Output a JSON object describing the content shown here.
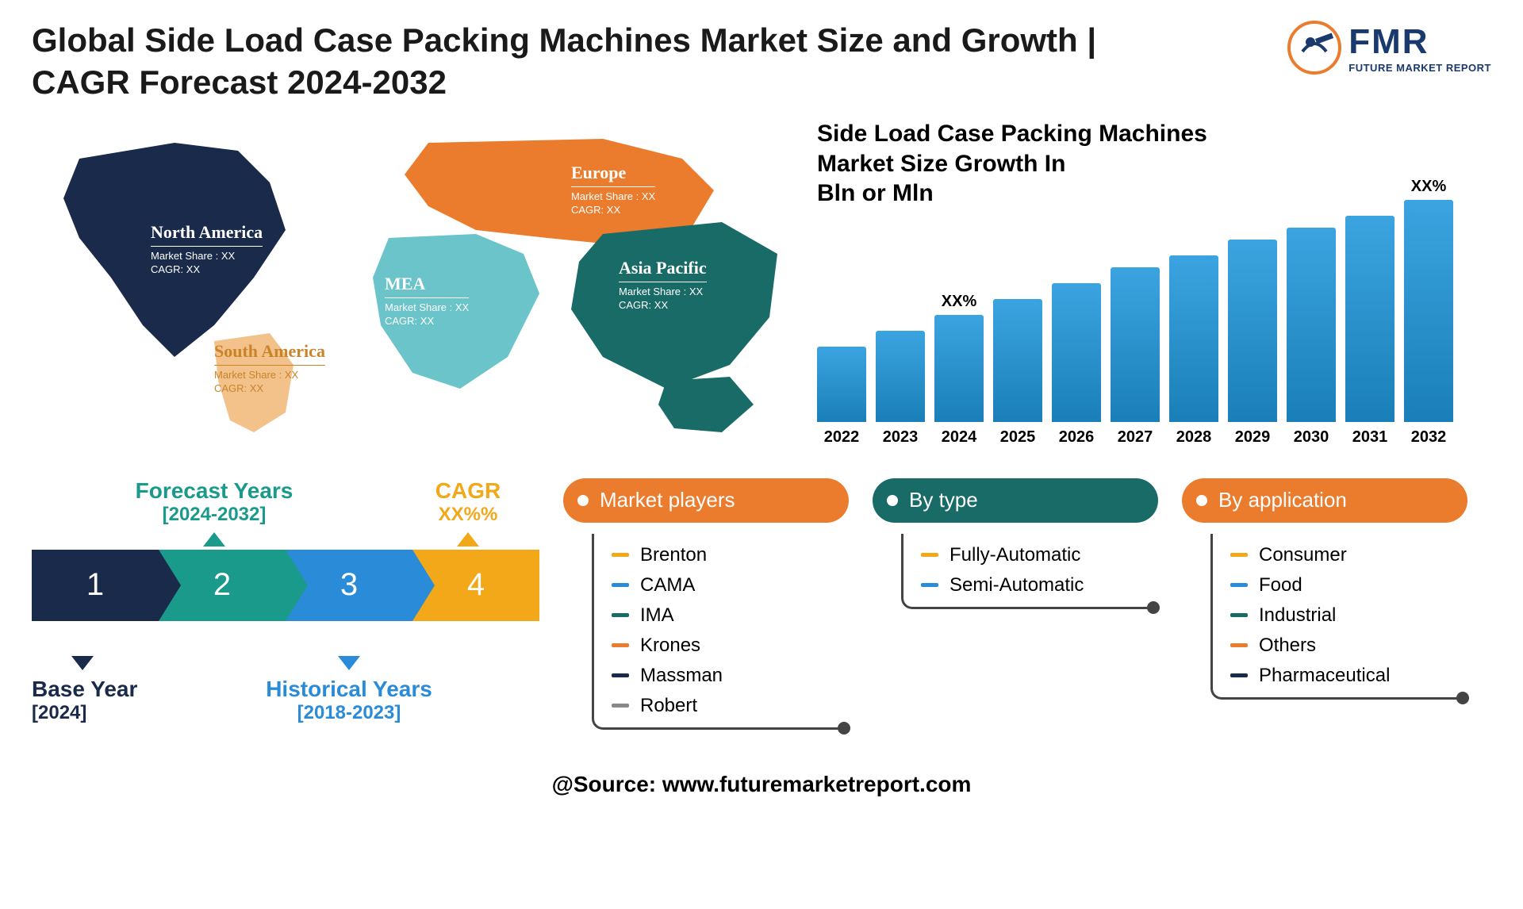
{
  "title": "Global Side Load Case Packing Machines Market Size and Growth | CAGR Forecast 2024-2032",
  "logo": {
    "text": "FMR",
    "subtitle": "FUTURE MARKET REPORT"
  },
  "colors": {
    "navy": "#1a2a4a",
    "teal": "#1a9a8a",
    "teal_dark": "#186b66",
    "orange": "#eb7b2d",
    "tan": "#f2c28a",
    "blue": "#2a8bd8",
    "yellow": "#f2a818",
    "cyan": "#6ac4c9",
    "bar_light": "#3ba4e0",
    "bar_dark": "#1a7fb8"
  },
  "regions": {
    "na": {
      "name": "North America",
      "share": "Market Share : XX",
      "cagr": "CAGR: XX",
      "color": "#1a2a4a"
    },
    "sa": {
      "name": "South America",
      "share": "Market Share : XX",
      "cagr": "CAGR: XX",
      "color": "#f2c28a"
    },
    "eu": {
      "name": "Europe",
      "share": "Market Share : XX",
      "cagr": "CAGR: XX",
      "color": "#eb7b2d"
    },
    "mea": {
      "name": "MEA",
      "share": "Market Share : XX",
      "cagr": "CAGR: XX",
      "color": "#6ac4c9"
    },
    "ap": {
      "name": "Asia Pacific",
      "share": "Market Share : XX",
      "cagr": "CAGR: XX",
      "color": "#186b66"
    }
  },
  "chart": {
    "title_l1": "Side Load Case Packing Machines",
    "title_l2": "Market Size Growth In",
    "title_l3": "Bln or Mln",
    "years": [
      "2022",
      "2023",
      "2024",
      "2025",
      "2026",
      "2027",
      "2028",
      "2029",
      "2030",
      "2031",
      "2032"
    ],
    "heights": [
      95,
      115,
      135,
      155,
      175,
      195,
      210,
      230,
      245,
      260,
      280
    ],
    "anno_2024": "XX%",
    "anno_2032": "XX%",
    "bar_colors": [
      "#3ba4e0",
      "#1a7fb8"
    ]
  },
  "timeline": {
    "forecast": {
      "label": "Forecast Years",
      "range": "[2024-2032]",
      "color": "#1a9a8a"
    },
    "cagr": {
      "label": "CAGR",
      "value": "XX%%",
      "color": "#f2a818"
    },
    "base": {
      "label": "Base Year",
      "range": "[2024]",
      "color": "#1a2a4a"
    },
    "hist": {
      "label": "Historical Years",
      "range": "[2018-2023]",
      "color": "#2a8bd8"
    },
    "segs": [
      {
        "n": "1",
        "bg": "#1a2a4a"
      },
      {
        "n": "2",
        "bg": "#1a9a8a"
      },
      {
        "n": "3",
        "bg": "#2a8bd8"
      },
      {
        "n": "4",
        "bg": "#f2a818"
      }
    ]
  },
  "cats": {
    "players": {
      "title": "Market players",
      "pill_color": "#eb7b2d",
      "items": [
        "Brenton",
        "CAMA",
        "IMA",
        "Krones",
        "Massman",
        "Robert"
      ]
    },
    "by_type": {
      "title": "By type",
      "pill_color": "#186b66",
      "items": [
        "Fully-Automatic",
        "Semi-Automatic"
      ]
    },
    "by_app": {
      "title": "By application",
      "pill_color": "#eb7b2d",
      "items": [
        "Consumer",
        "Food",
        "Industrial",
        "Others",
        "Pharmaceutical"
      ]
    },
    "tick_colors": [
      "#f2a818",
      "#2a8bd8",
      "#186b66",
      "#eb7b2d",
      "#1a2a4a",
      "#888888"
    ]
  },
  "source": "@Source: www.futuremarketreport.com"
}
